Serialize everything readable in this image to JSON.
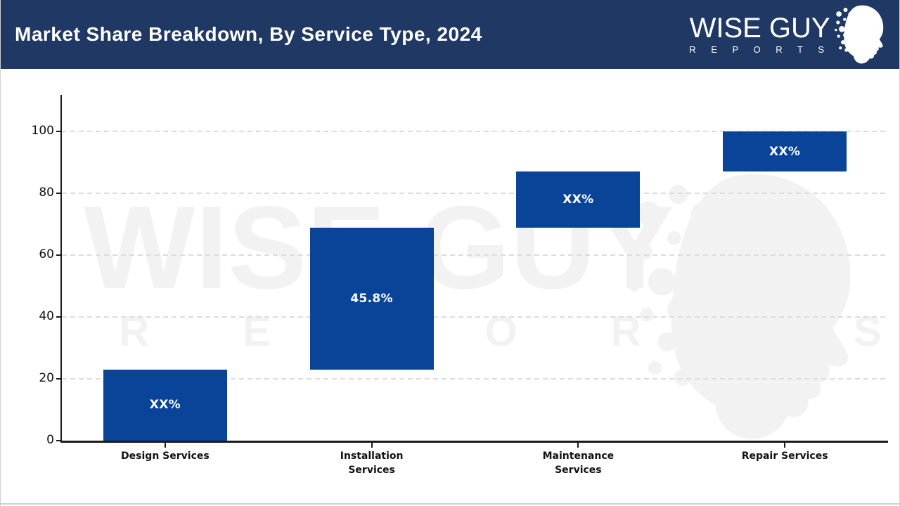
{
  "header": {
    "title": "Market Share Breakdown, By Service Type, 2024",
    "bg_color": "#1f3864",
    "brand": {
      "line1": "WISE GUY",
      "line2": "R E P O R T S"
    }
  },
  "watermark": {
    "line1": "WISE GUY",
    "line2": "R E P O R T S"
  },
  "chart_data": {
    "type": "bar",
    "subtype": "waterfall",
    "title": "Market Share Breakdown, By Service Type, 2024",
    "categories": [
      [
        "Design Services"
      ],
      [
        "Installation",
        "Services"
      ],
      [
        "Maintenance",
        "Services"
      ],
      [
        "Repair Services"
      ]
    ],
    "series": [
      {
        "name": "Market Share (%)",
        "segments": [
          {
            "category": "Design Services",
            "start": 0,
            "end": 23,
            "label": "XX%"
          },
          {
            "category": "Installation Services",
            "start": 23,
            "end": 68.8,
            "label": "45.8%"
          },
          {
            "category": "Maintenance Services",
            "start": 68.8,
            "end": 87,
            "label": "XX%"
          },
          {
            "category": "Repair Services",
            "start": 87,
            "end": 100,
            "label": "XX%"
          }
        ]
      }
    ],
    "ylim": [
      0,
      100
    ],
    "yticks": [
      0,
      20,
      40,
      60,
      80,
      100
    ],
    "grid": "horizontal-dashed",
    "legend": "none",
    "bar_color": "#0a4499",
    "bar_label_color": "#ffffff",
    "axis_color": "#1a1a1a",
    "grid_color": "#dcdcdc"
  }
}
